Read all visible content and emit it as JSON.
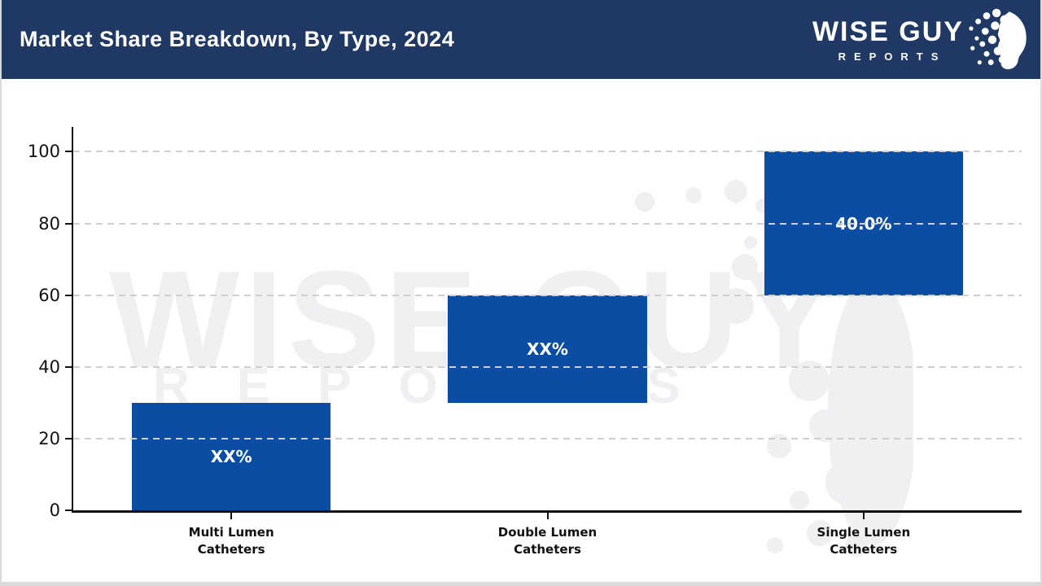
{
  "header": {
    "title": "Market Share Breakdown, By Type, 2024",
    "logo": {
      "name": "WISE GUY",
      "tagline": "REPORTS"
    }
  },
  "watermark": {
    "name": "WISE GUY",
    "tagline": "REPORTS"
  },
  "chart_data": {
    "type": "bar",
    "variant": "floating-range-bars",
    "title": "Market Share Breakdown, By Type, 2024",
    "categories": [
      {
        "line1": "Multi Lumen",
        "line2": "Catheters"
      },
      {
        "line1": "Double Lumen",
        "line2": "Catheters"
      },
      {
        "line1": "Single Lumen",
        "line2": "Catheters"
      }
    ],
    "bars": [
      {
        "start": 0,
        "end": 30,
        "label": "XX%"
      },
      {
        "start": 30,
        "end": 60,
        "label": "XX%"
      },
      {
        "start": 60,
        "end": 100,
        "label": "40.0%"
      }
    ],
    "yticks": [
      0,
      20,
      40,
      60,
      80,
      100
    ],
    "ylim": [
      0,
      106
    ],
    "xlabel": "",
    "ylabel": "",
    "grid": "horizontal-dashed",
    "legend": "none",
    "bar_color": "#0b4da2"
  },
  "colors": {
    "header_bg": "#1f3864",
    "bar": "#0b4da2",
    "grid": "#cfcfcf",
    "axis": "#111111",
    "text": "#111111",
    "bar_label": "#ffffff",
    "watermark": "#f0f0f2",
    "footer_strip": "#d8dadb"
  }
}
